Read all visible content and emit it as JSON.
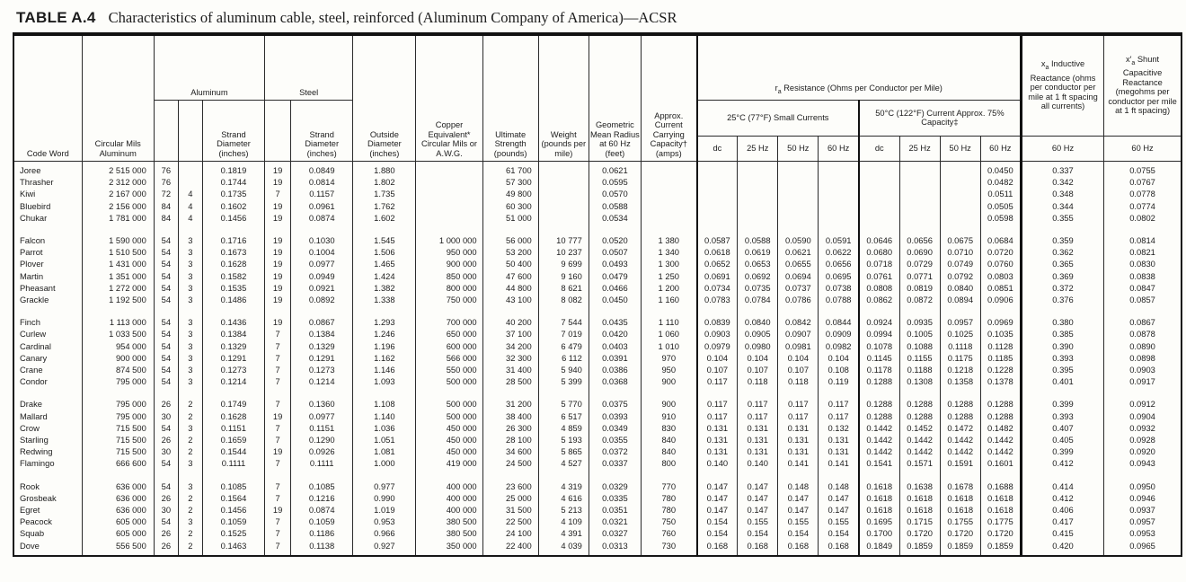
{
  "title": {
    "label": "TABLE A.4",
    "text": "Characteristics of aluminum cable, steel, reinforced (Aluminum Company of America)—ACSR"
  },
  "table": {
    "headers": {
      "code_word": "Code Word",
      "circular_mils": "Circular Mils Aluminum",
      "aluminum_group": "Aluminum",
      "aluminum_strand_diameter": "Strand Diameter (inches)",
      "steel_group": "Steel",
      "steel_strand_diameter": "Strand Diameter (inches)",
      "outside_diameter": "Outside Diameter (inches)",
      "copper_equivalent": "Copper Equivalent* Circular Mils or A.W.G.",
      "ultimate_strength": "Ultimate Strength (pounds)",
      "weight": "Weight (pounds per mile)",
      "gmr": "Geometric Mean Radius at 60 Hz (feet)",
      "current_capacity": "Approx. Current Carrying Capacity† (amps)",
      "resistance": {
        "sym": "r",
        "sub": "a",
        "rest": " Resistance (Ohms per Conductor per Mile)"
      },
      "group_25c": "25°C (77°F) Small Currents",
      "group_50c": "50°C (122°F) Current Approx. 75% Capacity‡",
      "freq": [
        "dc",
        "25 Hz",
        "50 Hz",
        "60 Hz"
      ],
      "xa": {
        "sym": "x",
        "sub": "a",
        "rest": " Inductive Reactance (ohms per conductor per mile at 1 ft spacing all currents)"
      },
      "xa_freq": "60 Hz",
      "xca": {
        "sym": "x′",
        "sub": "a",
        "rest": " Shunt Capacitive Reactance (megohms per conductor per mile at 1 ft spacing)"
      },
      "xca_freq": "60 Hz"
    },
    "column_keys": [
      "code_word",
      "circular_mils",
      "al_strands",
      "al_layers",
      "al_strand_diameter",
      "st_strands",
      "st_strand_diameter",
      "outside_diameter",
      "copper_equivalent",
      "ultimate_strength",
      "weight",
      "gmr",
      "current_capacity",
      "r25_dc",
      "r25_25hz",
      "r25_50hz",
      "r25_60hz",
      "r50_dc",
      "r50_25hz",
      "r50_50hz",
      "r50_60hz",
      "xa_60hz",
      "xca_60hz"
    ],
    "row_groups": [
      [
        [
          "Joree",
          "2 515 000",
          "76",
          "",
          "0.1819",
          "19",
          "0.0849",
          "1.880",
          "",
          "61 700",
          "",
          "0.0621",
          "",
          "",
          "",
          "",
          "",
          "",
          "",
          "",
          "0.0450",
          "0.337",
          "0.0755"
        ],
        [
          "Thrasher",
          "2 312 000",
          "76",
          "",
          "0.1744",
          "19",
          "0.0814",
          "1.802",
          "",
          "57 300",
          "",
          "0.0595",
          "",
          "",
          "",
          "",
          "",
          "",
          "",
          "",
          "0.0482",
          "0.342",
          "0.0767"
        ],
        [
          "Kiwi",
          "2 167 000",
          "72",
          "4",
          "0.1735",
          "7",
          "0.1157",
          "1.735",
          "",
          "49 800",
          "",
          "0.0570",
          "",
          "",
          "",
          "",
          "",
          "",
          "",
          "",
          "0.0511",
          "0.348",
          "0.0778"
        ],
        [
          "Bluebird",
          "2 156 000",
          "84",
          "4",
          "0.1602",
          "19",
          "0.0961",
          "1.762",
          "",
          "60 300",
          "",
          "0.0588",
          "",
          "",
          "",
          "",
          "",
          "",
          "",
          "",
          "0.0505",
          "0.344",
          "0.0774"
        ],
        [
          "Chukar",
          "1 781 000",
          "84",
          "4",
          "0.1456",
          "19",
          "0.0874",
          "1.602",
          "",
          "51 000",
          "",
          "0.0534",
          "",
          "",
          "",
          "",
          "",
          "",
          "",
          "",
          "0.0598",
          "0.355",
          "0.0802"
        ]
      ],
      [
        [
          "Falcon",
          "1 590 000",
          "54",
          "3",
          "0.1716",
          "19",
          "0.1030",
          "1.545",
          "1 000 000",
          "56 000",
          "10 777",
          "0.0520",
          "1 380",
          "0.0587",
          "0.0588",
          "0.0590",
          "0.0591",
          "0.0646",
          "0.0656",
          "0.0675",
          "0.0684",
          "0.359",
          "0.0814"
        ],
        [
          "Parrot",
          "1 510 500",
          "54",
          "3",
          "0.1673",
          "19",
          "0.1004",
          "1.506",
          "950 000",
          "53 200",
          "10 237",
          "0.0507",
          "1 340",
          "0.0618",
          "0.0619",
          "0.0621",
          "0.0622",
          "0.0680",
          "0.0690",
          "0.0710",
          "0.0720",
          "0.362",
          "0.0821"
        ],
        [
          "Plover",
          "1 431 000",
          "54",
          "3",
          "0.1628",
          "19",
          "0.0977",
          "1.465",
          "900 000",
          "50 400",
          "9 699",
          "0.0493",
          "1 300",
          "0.0652",
          "0.0653",
          "0.0655",
          "0.0656",
          "0.0718",
          "0.0729",
          "0.0749",
          "0.0760",
          "0.365",
          "0.0830"
        ],
        [
          "Martin",
          "1 351 000",
          "54",
          "3",
          "0.1582",
          "19",
          "0.0949",
          "1.424",
          "850 000",
          "47 600",
          "9 160",
          "0.0479",
          "1 250",
          "0.0691",
          "0.0692",
          "0.0694",
          "0.0695",
          "0.0761",
          "0.0771",
          "0.0792",
          "0.0803",
          "0.369",
          "0.0838"
        ],
        [
          "Pheasant",
          "1 272 000",
          "54",
          "3",
          "0.1535",
          "19",
          "0.0921",
          "1.382",
          "800 000",
          "44 800",
          "8 621",
          "0.0466",
          "1 200",
          "0.0734",
          "0.0735",
          "0.0737",
          "0.0738",
          "0.0808",
          "0.0819",
          "0.0840",
          "0.0851",
          "0.372",
          "0.0847"
        ],
        [
          "Grackle",
          "1 192 500",
          "54",
          "3",
          "0.1486",
          "19",
          "0.0892",
          "1.338",
          "750 000",
          "43 100",
          "8 082",
          "0.0450",
          "1 160",
          "0.0783",
          "0.0784",
          "0.0786",
          "0.0788",
          "0.0862",
          "0.0872",
          "0.0894",
          "0.0906",
          "0.376",
          "0.0857"
        ]
      ],
      [
        [
          "Finch",
          "1 113 000",
          "54",
          "3",
          "0.1436",
          "19",
          "0.0867",
          "1.293",
          "700 000",
          "40 200",
          "7 544",
          "0.0435",
          "1 110",
          "0.0839",
          "0.0840",
          "0.0842",
          "0.0844",
          "0.0924",
          "0.0935",
          "0.0957",
          "0.0969",
          "0.380",
          "0.0867"
        ],
        [
          "Curlew",
          "1 033 500",
          "54",
          "3",
          "0.1384",
          "7",
          "0.1384",
          "1.246",
          "650 000",
          "37 100",
          "7 019",
          "0.0420",
          "1 060",
          "0.0903",
          "0.0905",
          "0.0907",
          "0.0909",
          "0.0994",
          "0.1005",
          "0.1025",
          "0.1035",
          "0.385",
          "0.0878"
        ],
        [
          "Cardinal",
          "954 000",
          "54",
          "3",
          "0.1329",
          "7",
          "0.1329",
          "1.196",
          "600 000",
          "34 200",
          "6 479",
          "0.0403",
          "1 010",
          "0.0979",
          "0.0980",
          "0.0981",
          "0.0982",
          "0.1078",
          "0.1088",
          "0.1118",
          "0.1128",
          "0.390",
          "0.0890"
        ],
        [
          "Canary",
          "900 000",
          "54",
          "3",
          "0.1291",
          "7",
          "0.1291",
          "1.162",
          "566 000",
          "32 300",
          "6 112",
          "0.0391",
          "970",
          "0.104",
          "0.104",
          "0.104",
          "0.104",
          "0.1145",
          "0.1155",
          "0.1175",
          "0.1185",
          "0.393",
          "0.0898"
        ],
        [
          "Crane",
          "874 500",
          "54",
          "3",
          "0.1273",
          "7",
          "0.1273",
          "1.146",
          "550 000",
          "31 400",
          "5 940",
          "0.0386",
          "950",
          "0.107",
          "0.107",
          "0.107",
          "0.108",
          "0.1178",
          "0.1188",
          "0.1218",
          "0.1228",
          "0.395",
          "0.0903"
        ],
        [
          "Condor",
          "795 000",
          "54",
          "3",
          "0.1214",
          "7",
          "0.1214",
          "1.093",
          "500 000",
          "28 500",
          "5 399",
          "0.0368",
          "900",
          "0.117",
          "0.118",
          "0.118",
          "0.119",
          "0.1288",
          "0.1308",
          "0.1358",
          "0.1378",
          "0.401",
          "0.0917"
        ]
      ],
      [
        [
          "Drake",
          "795 000",
          "26",
          "2",
          "0.1749",
          "7",
          "0.1360",
          "1.108",
          "500 000",
          "31 200",
          "5 770",
          "0.0375",
          "900",
          "0.117",
          "0.117",
          "0.117",
          "0.117",
          "0.1288",
          "0.1288",
          "0.1288",
          "0.1288",
          "0.399",
          "0.0912"
        ],
        [
          "Mallard",
          "795 000",
          "30",
          "2",
          "0.1628",
          "19",
          "0.0977",
          "1.140",
          "500 000",
          "38 400",
          "6 517",
          "0.0393",
          "910",
          "0.117",
          "0.117",
          "0.117",
          "0.117",
          "0.1288",
          "0.1288",
          "0.1288",
          "0.1288",
          "0.393",
          "0.0904"
        ],
        [
          "Crow",
          "715 500",
          "54",
          "3",
          "0.1151",
          "7",
          "0.1151",
          "1.036",
          "450 000",
          "26 300",
          "4 859",
          "0.0349",
          "830",
          "0.131",
          "0.131",
          "0.131",
          "0.132",
          "0.1442",
          "0.1452",
          "0.1472",
          "0.1482",
          "0.407",
          "0.0932"
        ],
        [
          "Starling",
          "715 500",
          "26",
          "2",
          "0.1659",
          "7",
          "0.1290",
          "1.051",
          "450 000",
          "28 100",
          "5 193",
          "0.0355",
          "840",
          "0.131",
          "0.131",
          "0.131",
          "0.131",
          "0.1442",
          "0.1442",
          "0.1442",
          "0.1442",
          "0.405",
          "0.0928"
        ],
        [
          "Redwing",
          "715 500",
          "30",
          "2",
          "0.1544",
          "19",
          "0.0926",
          "1.081",
          "450 000",
          "34 600",
          "5 865",
          "0.0372",
          "840",
          "0.131",
          "0.131",
          "0.131",
          "0.131",
          "0.1442",
          "0.1442",
          "0.1442",
          "0.1442",
          "0.399",
          "0.0920"
        ],
        [
          "Flamingo",
          "666 600",
          "54",
          "3",
          "0.1111",
          "7",
          "0.1111",
          "1.000",
          "419 000",
          "24 500",
          "4 527",
          "0.0337",
          "800",
          "0.140",
          "0.140",
          "0.141",
          "0.141",
          "0.1541",
          "0.1571",
          "0.1591",
          "0.1601",
          "0.412",
          "0.0943"
        ]
      ],
      [
        [
          "Rook",
          "636 000",
          "54",
          "3",
          "0.1085",
          "7",
          "0.1085",
          "0.977",
          "400 000",
          "23 600",
          "4 319",
          "0.0329",
          "770",
          "0.147",
          "0.147",
          "0.148",
          "0.148",
          "0.1618",
          "0.1638",
          "0.1678",
          "0.1688",
          "0.414",
          "0.0950"
        ],
        [
          "Grosbeak",
          "636 000",
          "26",
          "2",
          "0.1564",
          "7",
          "0.1216",
          "0.990",
          "400 000",
          "25 000",
          "4 616",
          "0.0335",
          "780",
          "0.147",
          "0.147",
          "0.147",
          "0.147",
          "0.1618",
          "0.1618",
          "0.1618",
          "0.1618",
          "0.412",
          "0.0946"
        ],
        [
          "Egret",
          "636 000",
          "30",
          "2",
          "0.1456",
          "19",
          "0.0874",
          "1.019",
          "400 000",
          "31 500",
          "5 213",
          "0.0351",
          "780",
          "0.147",
          "0.147",
          "0.147",
          "0.147",
          "0.1618",
          "0.1618",
          "0.1618",
          "0.1618",
          "0.406",
          "0.0937"
        ],
        [
          "Peacock",
          "605 000",
          "54",
          "3",
          "0.1059",
          "7",
          "0.1059",
          "0.953",
          "380 500",
          "22 500",
          "4 109",
          "0.0321",
          "750",
          "0.154",
          "0.155",
          "0.155",
          "0.155",
          "0.1695",
          "0.1715",
          "0.1755",
          "0.1775",
          "0.417",
          "0.0957"
        ],
        [
          "Squab",
          "605 000",
          "26",
          "2",
          "0.1525",
          "7",
          "0.1186",
          "0.966",
          "380 500",
          "24 100",
          "4 391",
          "0.0327",
          "760",
          "0.154",
          "0.154",
          "0.154",
          "0.154",
          "0.1700",
          "0.1720",
          "0.1720",
          "0.1720",
          "0.415",
          "0.0953"
        ],
        [
          "Dove",
          "556 500",
          "26",
          "2",
          "0.1463",
          "7",
          "0.1138",
          "0.927",
          "350 000",
          "22 400",
          "4 039",
          "0.0313",
          "730",
          "0.168",
          "0.168",
          "0.168",
          "0.168",
          "0.1849",
          "0.1859",
          "0.1859",
          "0.1859",
          "0.420",
          "0.0965"
        ]
      ]
    ]
  }
}
